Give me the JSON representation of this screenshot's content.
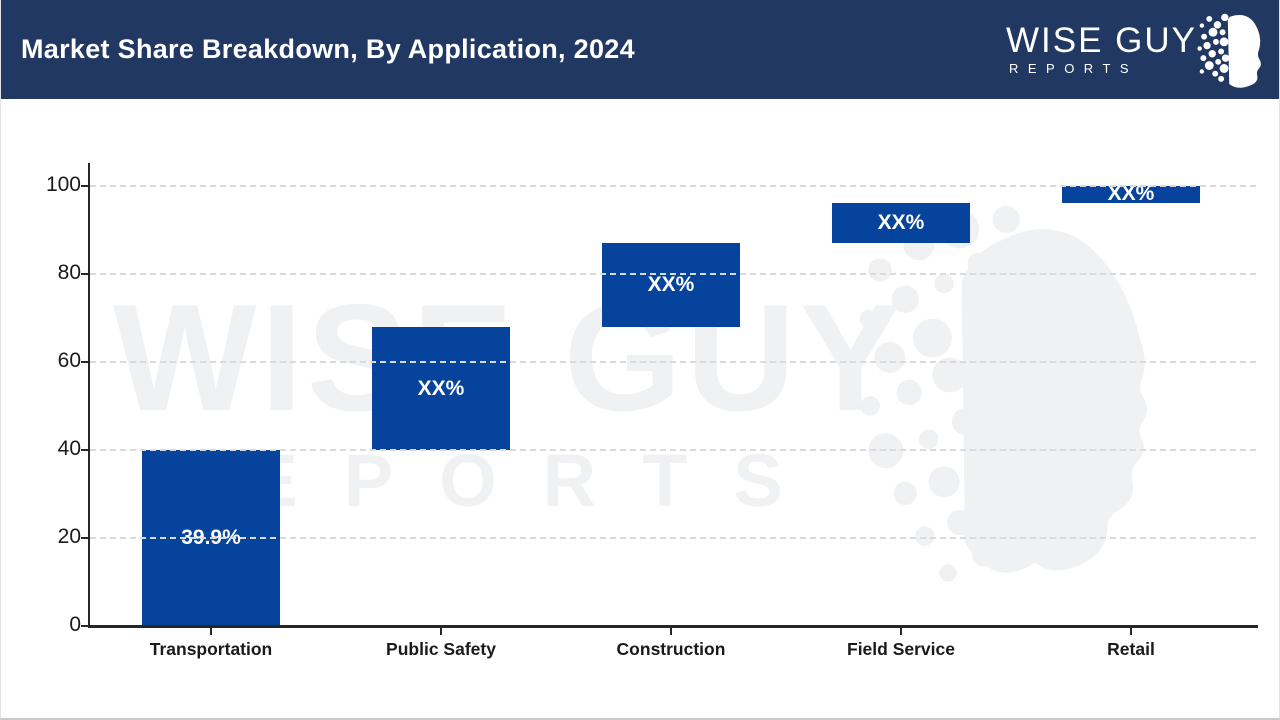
{
  "header": {
    "title": "Market Share Breakdown, By Application, 2024",
    "logo": {
      "line1": "WISE GUY",
      "line2": "REPORTS"
    }
  },
  "watermark": {
    "line1": "WISE GUY",
    "line2": "REPORTS"
  },
  "colors": {
    "header_bg": "#213862",
    "bar": "#05439C",
    "bar_label": "#ffffff",
    "axis": "#262626",
    "gridline": "#dadadd",
    "watermark": "#f0f1f3",
    "tick_text": "#1a1a1a"
  },
  "chart_data": {
    "type": "bar",
    "subtype": "waterfall",
    "title": "Market Share Breakdown, By Application, 2024",
    "categories": [
      "Transportation",
      "Public Safety",
      "Construction",
      "Field Service",
      "Retail"
    ],
    "segments": [
      {
        "category": "Transportation",
        "start": 0,
        "end": 39.9,
        "label": "39.9%"
      },
      {
        "category": "Public Safety",
        "start": 39.9,
        "end": 68,
        "label": "XX%"
      },
      {
        "category": "Construction",
        "start": 68,
        "end": 87,
        "label": "XX%"
      },
      {
        "category": "Field Service",
        "start": 87,
        "end": 96.2,
        "label": "XX%"
      },
      {
        "category": "Retail",
        "start": 96.2,
        "end": 100,
        "label": "XX%"
      }
    ],
    "y_ticks": [
      0,
      20,
      40,
      60,
      80,
      100
    ],
    "ylim": [
      0,
      105
    ],
    "xlabel": "",
    "ylabel": "",
    "grid": "dashed-horizontal-above-bars",
    "legend": "none"
  }
}
